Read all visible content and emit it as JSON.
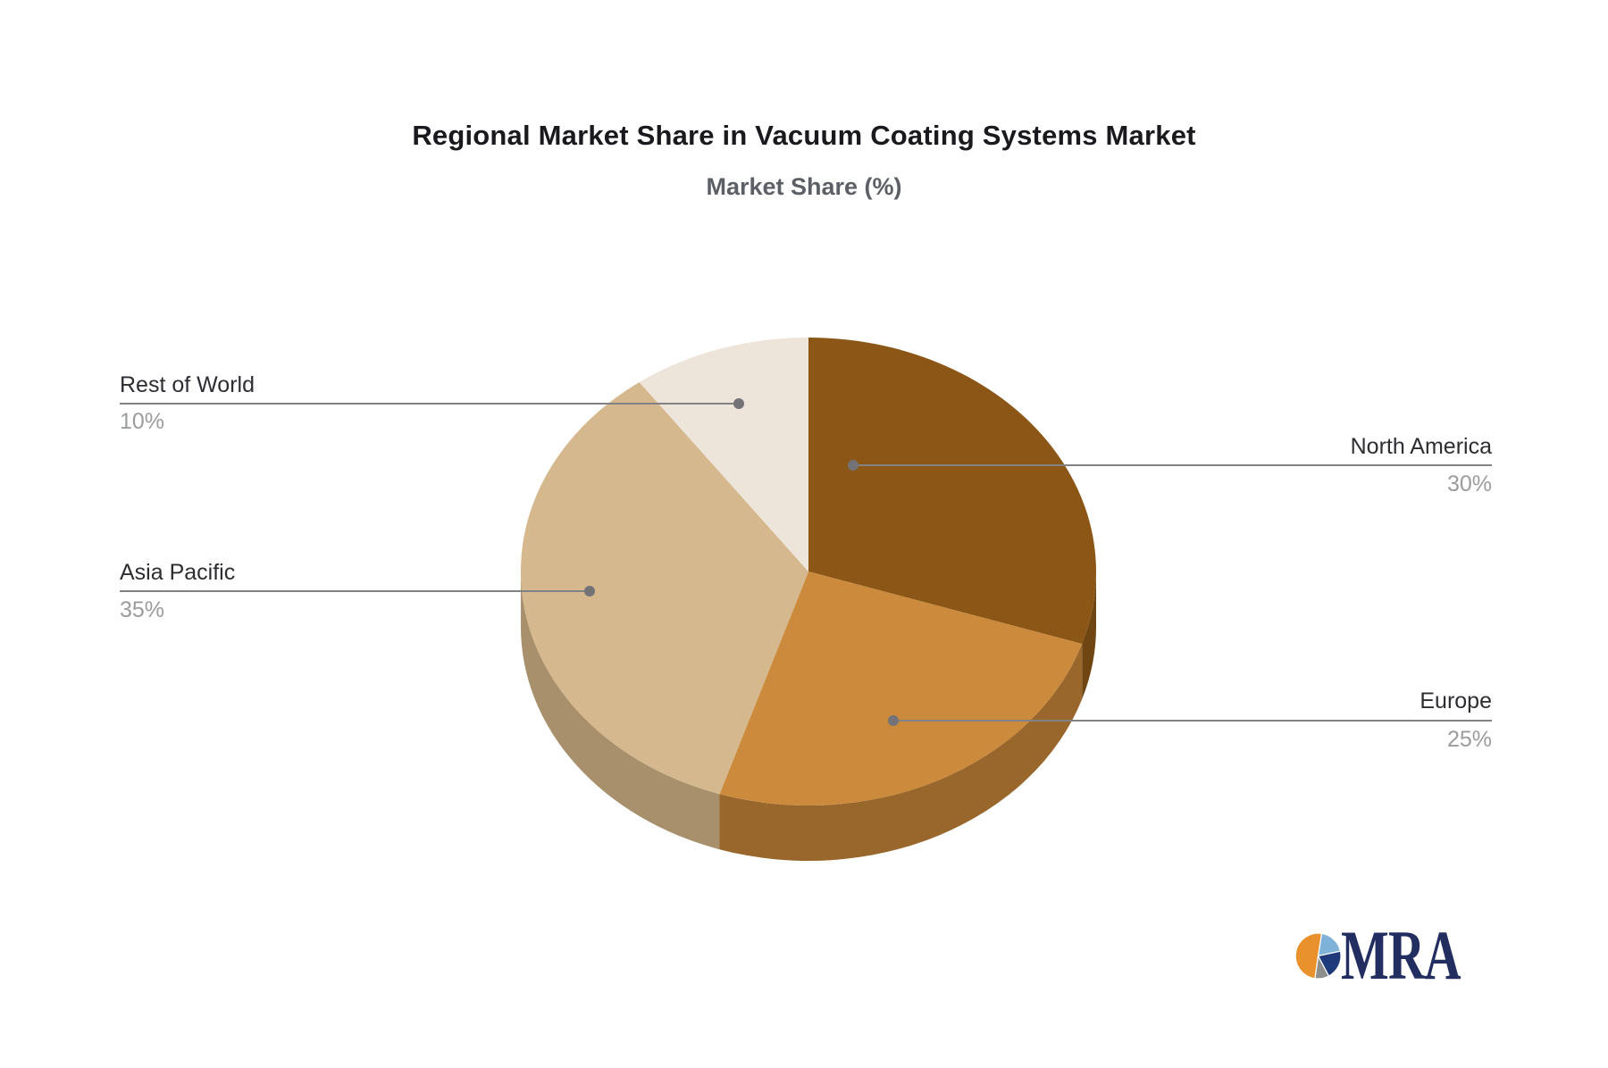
{
  "title": "Regional Market Share in Vacuum Coating Systems Market",
  "subtitle": "Market Share (%)",
  "chart_data": {
    "type": "pie",
    "title": "Regional Market Share in Vacuum Coating Systems Market",
    "subtitle": "Market Share (%)",
    "unit": "%",
    "style": "3d-pie",
    "start_angle_deg": 0,
    "direction": "clockwise",
    "legend_position": "none",
    "slices": [
      {
        "label": "North America",
        "value": 30,
        "display": "30%",
        "color": "#8B5616",
        "side_color": "#6F4512",
        "label_side": "right"
      },
      {
        "label": "Europe",
        "value": 25,
        "display": "25%",
        "color": "#CC8A3D",
        "side_color": "#99672B",
        "label_side": "right"
      },
      {
        "label": "Asia Pacific",
        "value": 35,
        "display": "35%",
        "color": "#D6B88E",
        "side_color": "#A7906B",
        "label_side": "left"
      },
      {
        "label": "Rest of World",
        "value": 10,
        "display": "10%",
        "color": "#EDE4DA",
        "side_color": "#B5A898",
        "label_side": "left"
      }
    ]
  },
  "logo": {
    "text": "MRA",
    "text_color": "#222d60",
    "icon": "pie-chart-icon",
    "icon_colors": {
      "orange": "#E8912D",
      "light_blue": "#7FB2D9",
      "navy": "#1F3A7A",
      "gray": "#8E8E8E"
    }
  },
  "colors": {
    "background": "#ffffff",
    "title": "#1a1a1e",
    "subtitle": "#5c6066",
    "label_name": "#2d2d32",
    "label_percent": "#9b9c9e",
    "leader_line": "#828285",
    "leader_dot": "#737377"
  }
}
